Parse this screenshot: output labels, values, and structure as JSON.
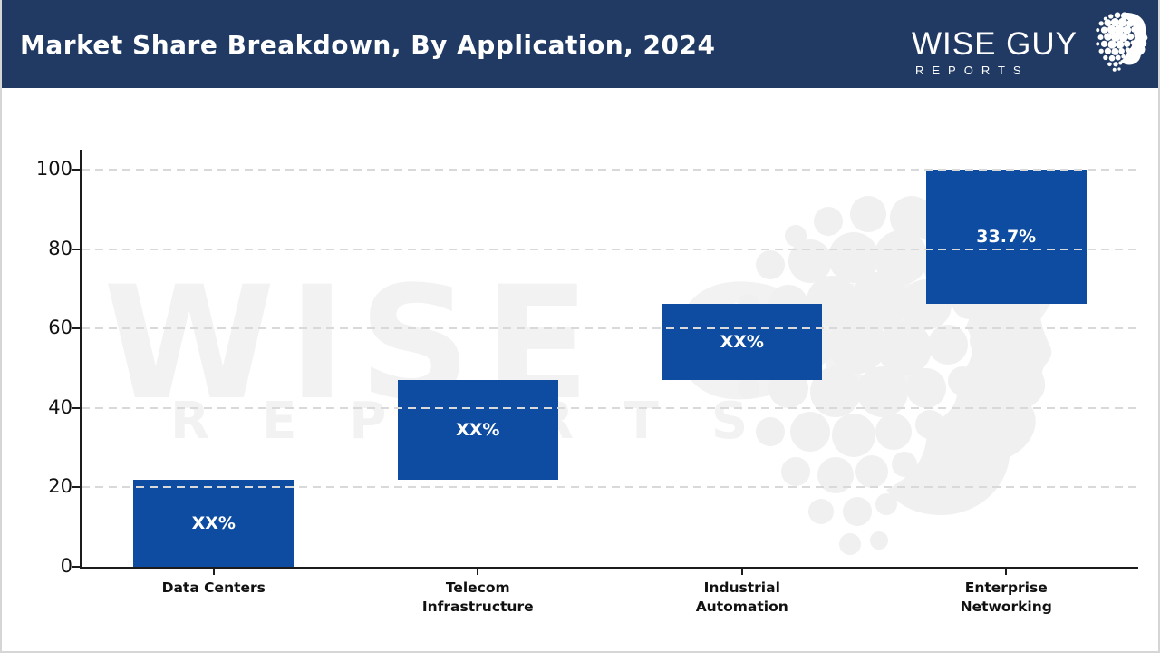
{
  "header": {
    "title": "Market Share Breakdown, By Application, 2024",
    "logo": {
      "line1": "WISE GUY",
      "line2": "REPORTS"
    }
  },
  "watermark": {
    "line1": "WISE GUY",
    "line2": "REPORTS"
  },
  "colors": {
    "header_bg": "#203a64",
    "bar": "#0d4ca0",
    "grid": "#d9d9d9",
    "axis": "#1c1c1c",
    "watermark": "#f2f2f2",
    "bar_label": "#ffffff"
  },
  "chart_data": {
    "type": "bar",
    "subtype": "waterfall-floating-bars",
    "title": "Market Share Breakdown, By Application, 2024",
    "categories": [
      "Data Centers",
      "Telecom Infrastructure",
      "Industrial Automation",
      "Enterprise Networking"
    ],
    "segments": [
      {
        "category": "Data Centers",
        "start": 0,
        "end": 22,
        "label": "XX%"
      },
      {
        "category": "Telecom Infrastructure",
        "start": 22,
        "end": 47,
        "label": "XX%"
      },
      {
        "category": "Industrial Automation",
        "start": 47,
        "end": 66.3,
        "label": "XX%"
      },
      {
        "category": "Enterprise Networking",
        "start": 66.3,
        "end": 100,
        "label": "33.7%"
      }
    ],
    "ylim": [
      0,
      100
    ],
    "yticks": [
      0,
      20,
      40,
      60,
      80,
      100
    ],
    "xlabel": "",
    "ylabel": "",
    "grid": "dashed-horizontal-over-bars",
    "legend": "none"
  }
}
